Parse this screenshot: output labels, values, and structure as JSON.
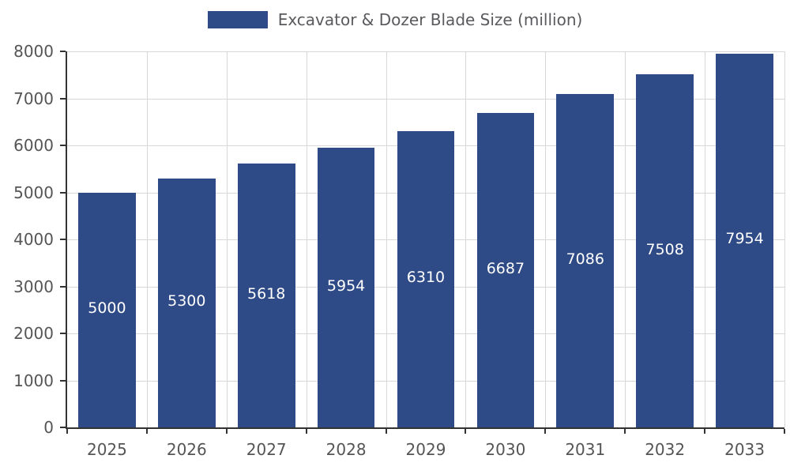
{
  "legend": {
    "label": "Excavator & Dozer Blade Size (million)"
  },
  "chart_data": {
    "type": "bar",
    "title": "Excavator & Dozer Blade Size (million)",
    "categories": [
      "2025",
      "2026",
      "2027",
      "2028",
      "2029",
      "2030",
      "2031",
      "2032",
      "2033"
    ],
    "values": [
      5000,
      5300,
      5618,
      5954,
      6310,
      6687,
      7086,
      7508,
      7954
    ],
    "xlabel": "",
    "ylabel": "",
    "ylim": [
      0,
      8000
    ],
    "ytick_step": 1000,
    "yticks": [
      0,
      1000,
      2000,
      3000,
      4000,
      5000,
      6000,
      7000,
      8000
    ],
    "grid": true,
    "legend_position": "top",
    "bar_color": "#2f4b87",
    "value_label_color": "#ffffff",
    "axis_color": "#333333",
    "grid_color": "#d8d8d8",
    "tick_label_color": "#555555"
  }
}
